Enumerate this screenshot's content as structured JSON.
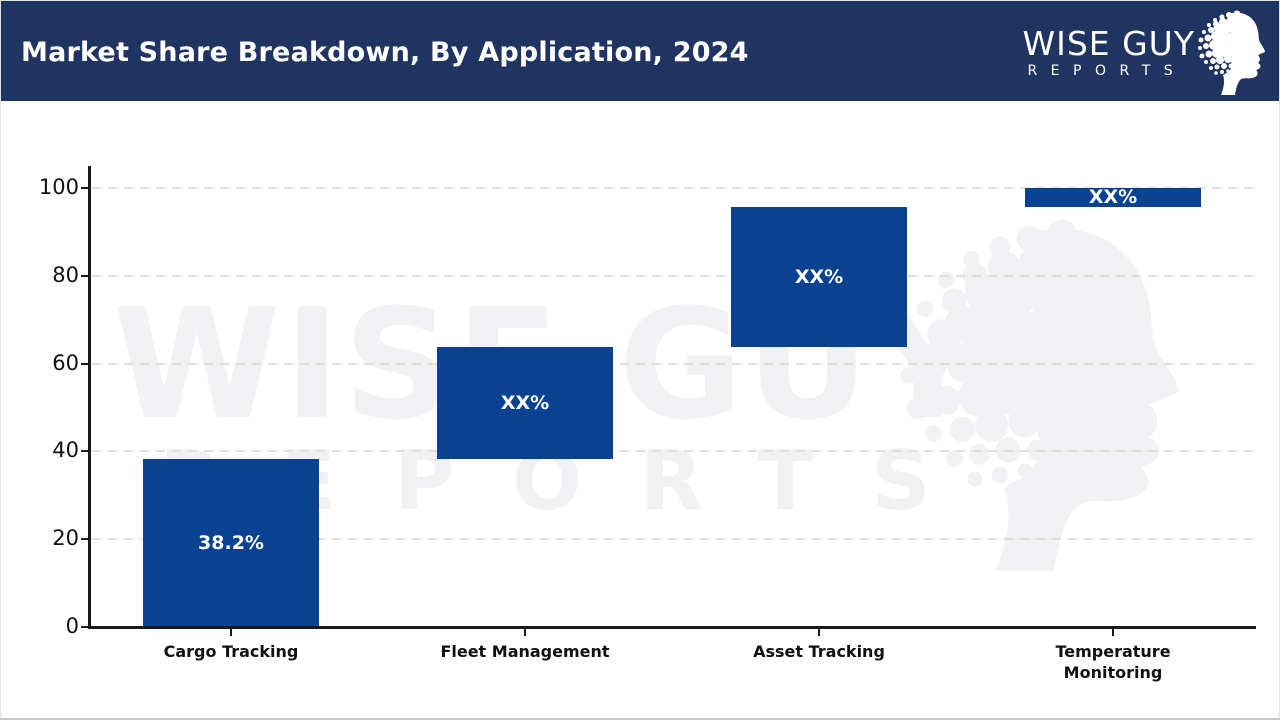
{
  "header": {
    "title": "Market Share Breakdown, By Application, 2024",
    "brand": {
      "name_line1": "WISE GUY",
      "name_line2": "REPORTS",
      "head_icon": "dotted-head-profile-icon"
    }
  },
  "watermark": {
    "line1": "WISE GUY",
    "line2": "REPORTS"
  },
  "colors": {
    "header_bg": "#1f3460",
    "bar_blue": "#0a4190",
    "grid_line": "#dedede",
    "axis": "#1a1a1a",
    "watermark": "#f1f1f4",
    "bar_label": "#ffffff"
  },
  "chart_data": {
    "type": "bar",
    "variant": "waterfall",
    "title": "Market Share Breakdown, By Application, 2024",
    "categories": [
      "Cargo Tracking",
      "Fleet Management",
      "Asset Tracking",
      "Temperature Monitoring"
    ],
    "segments": [
      {
        "category": "Cargo Tracking",
        "start": 0,
        "end": 38.2,
        "value": 38.2,
        "label": "38.2%"
      },
      {
        "category": "Fleet Management",
        "start": 38.2,
        "end": 63.8,
        "value": 25.6,
        "label": "XX%"
      },
      {
        "category": "Asset Tracking",
        "start": 63.8,
        "end": 95.6,
        "value": 31.8,
        "label": "XX%"
      },
      {
        "category": "Temperature Monitoring",
        "start": 95.6,
        "end": 100,
        "value": 4.4,
        "label": "XX%"
      }
    ],
    "ylim": [
      0,
      105
    ],
    "yticks": [
      0,
      20,
      40,
      60,
      80,
      100
    ],
    "grid": "horizontal-dashed",
    "legend": "none",
    "bar_color": "#0a4190",
    "bar_label_color": "#ffffff"
  }
}
